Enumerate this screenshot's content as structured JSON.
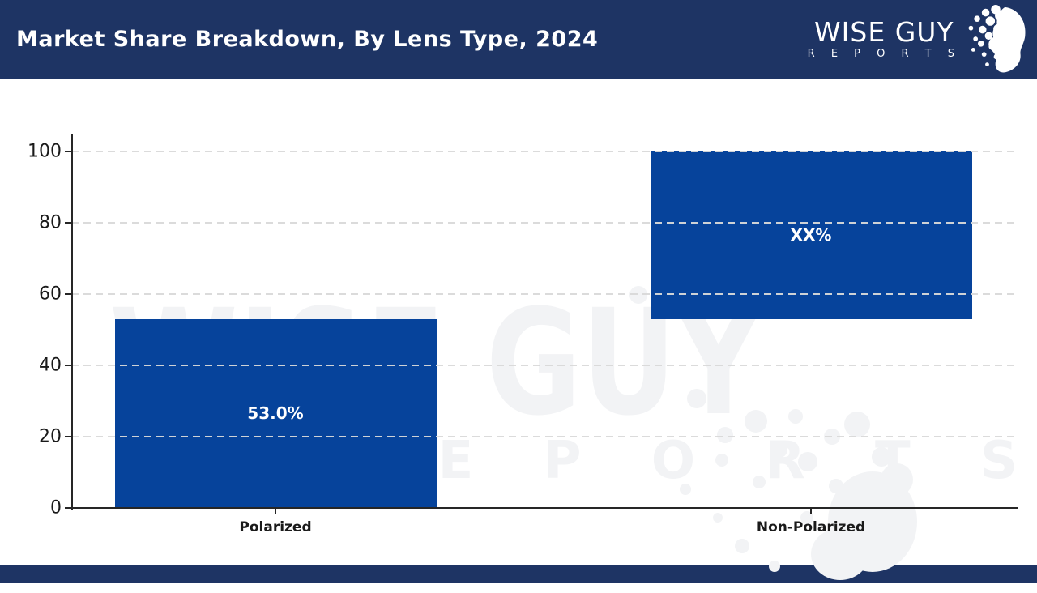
{
  "header": {
    "title": "Market Share Breakdown, By Lens Type, 2024",
    "logo": {
      "wordmark": "WISE GUY",
      "subtext": "R E P O R T S"
    }
  },
  "watermark": {
    "wordmark": "WISE GUY",
    "subtext": "R E P O R T S"
  },
  "chart_data": {
    "type": "bar",
    "title": "Market Share Breakdown, By Lens Type, 2024",
    "categories": [
      "Polarized",
      "Non-Polarized"
    ],
    "bars": [
      {
        "category": "Polarized",
        "label": "53.0%",
        "start": 0,
        "end": 53.0
      },
      {
        "category": "Non-Polarized",
        "label": "XX%",
        "start": 53.0,
        "end": 100.0
      }
    ],
    "yticks": [
      0,
      20,
      40,
      60,
      80,
      100
    ],
    "ylim": [
      0,
      105
    ],
    "xlabel": "",
    "ylabel": "",
    "grid": "horizontal-dashed",
    "legend": "none",
    "bar_color": "#06439B"
  },
  "colors": {
    "header_bg": "#1E3464",
    "footer_bg": "#1E3464",
    "bar": "#06439B",
    "gridline": "#D9D9D9",
    "axis": "#262626",
    "watermark": "#F2F3F5"
  }
}
